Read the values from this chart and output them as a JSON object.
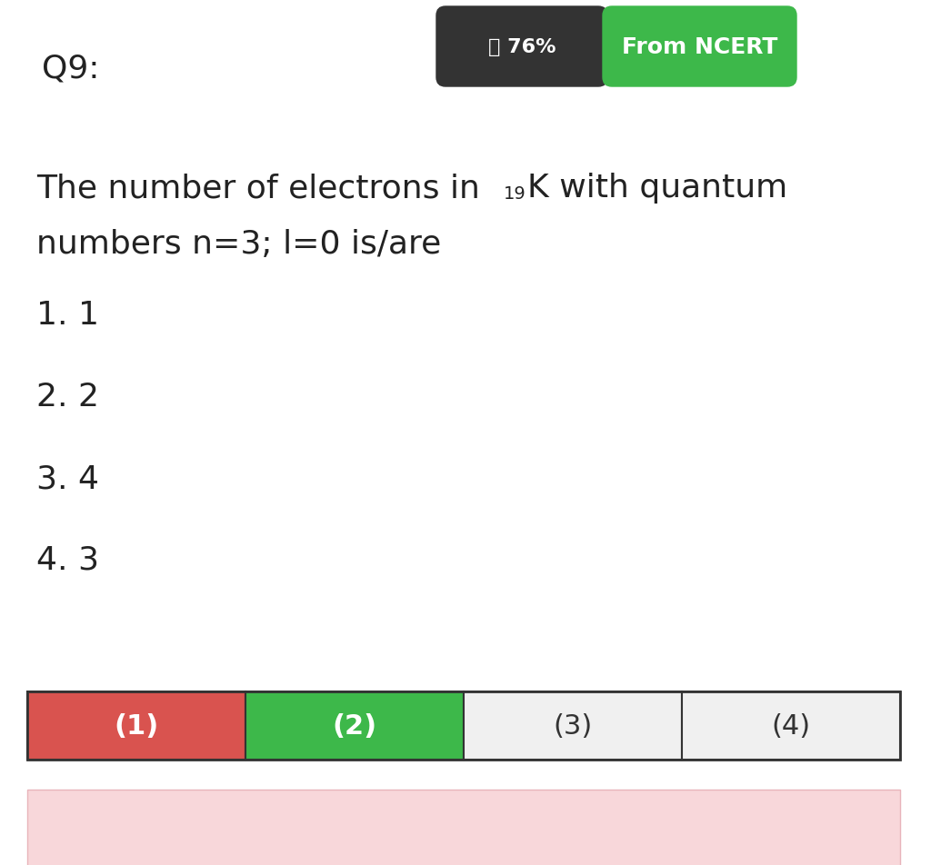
{
  "background_color": "#ffffff",
  "q_label": "Q9:",
  "q_label_fontsize": 26,
  "badge_76_color": "#333333",
  "badge_ncert_text": "From NCERT",
  "badge_ncert_color": "#3db84a",
  "question_line1": "The number of electrons in",
  "question_subscript": "19",
  "question_line1b": "K with quantum",
  "question_line2": "numbers n=3; l=0 is/are",
  "question_fontsize": 26,
  "options": [
    "1. 1",
    "2. 2",
    "3. 4",
    "4. 3"
  ],
  "options_fontsize": 26,
  "bar_labels": [
    "(1)",
    "(2)",
    "(3)",
    "(4)"
  ],
  "bar_colors": [
    "#d9534f",
    "#3db84a",
    "#f0f0f0",
    "#f0f0f0"
  ],
  "bar_text_colors": [
    "#ffffff",
    "#ffffff",
    "#333333",
    "#333333"
  ],
  "bar_border_color": "#333333",
  "bottom_pink_color": "#f8d7da",
  "text_color": "#222222"
}
